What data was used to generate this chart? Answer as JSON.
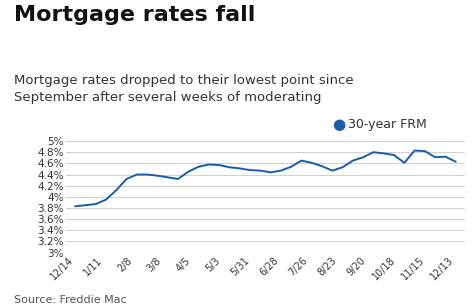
{
  "title": "Mortgage rates fall",
  "subtitle": "Mortgage rates dropped to their lowest point since\nSeptember after several weeks of moderating",
  "source": "Source: Freddie Mac",
  "legend_label": "30-year FRM",
  "x_labels": [
    "12/14",
    "1/11",
    "2/8",
    "3/8",
    "4/5",
    "5/3",
    "5/31",
    "6/28",
    "7/26",
    "8/23",
    "9/20",
    "10/18",
    "11/15",
    "12/13"
  ],
  "y_values": [
    3.83,
    3.85,
    3.87,
    3.95,
    4.12,
    4.32,
    4.4,
    4.4,
    4.38,
    4.35,
    4.32,
    4.45,
    4.54,
    4.58,
    4.57,
    4.53,
    4.51,
    4.48,
    4.47,
    4.44,
    4.47,
    4.54,
    4.65,
    4.61,
    4.55,
    4.47,
    4.53,
    4.65,
    4.71,
    4.8,
    4.78,
    4.75,
    4.61,
    4.83,
    4.82,
    4.71,
    4.72,
    4.63
  ],
  "line_color": "#1a5ca8",
  "background_color": "#ffffff",
  "grid_color": "#c8c8c8",
  "ylim": [
    3.0,
    5.1
  ],
  "yticks": [
    3.0,
    3.2,
    3.4,
    3.6,
    3.8,
    4.0,
    4.2,
    4.4,
    4.6,
    4.8,
    5.0
  ],
  "ytick_labels": [
    "3%",
    "3.2%",
    "3.4%",
    "3.6%",
    "3.8%",
    "4%",
    "4.2%",
    "4.4%",
    "4.6%",
    "4.8%",
    "5%"
  ],
  "title_fontsize": 16,
  "subtitle_fontsize": 9.5,
  "tick_fontsize": 7.5,
  "source_fontsize": 8,
  "legend_fontsize": 9
}
